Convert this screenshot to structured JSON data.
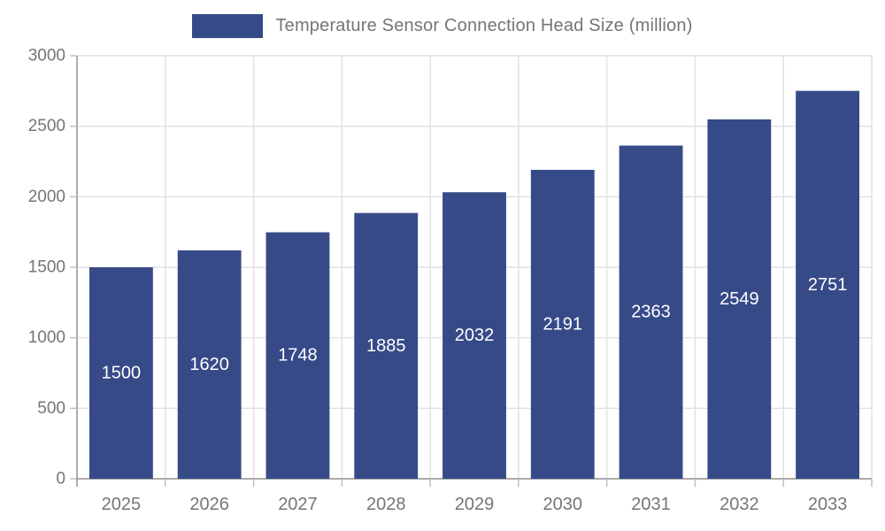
{
  "chart_data": {
    "type": "bar",
    "title": "Temperature Sensor Connection Head Size (million)",
    "legend": {
      "label": "Temperature Sensor Connection Head Size (million)",
      "position": "top"
    },
    "categories": [
      "2025",
      "2026",
      "2027",
      "2028",
      "2029",
      "2030",
      "2031",
      "2032",
      "2033"
    ],
    "values": [
      1500,
      1620,
      1748,
      1885,
      2032,
      2191,
      2363,
      2549,
      2751
    ],
    "xlabel": "",
    "ylabel": "",
    "ylim": [
      0,
      3000
    ],
    "yticks": [
      0,
      500,
      1000,
      1500,
      2000,
      2500,
      3000
    ],
    "grid": true,
    "colors": {
      "bar": "#374a88",
      "bar_label": "#ffffff",
      "axis_text": "#757575",
      "axis_line": "#909090",
      "grid_line": "#e2e2e2",
      "tick_line": "#c0c0c0"
    }
  }
}
